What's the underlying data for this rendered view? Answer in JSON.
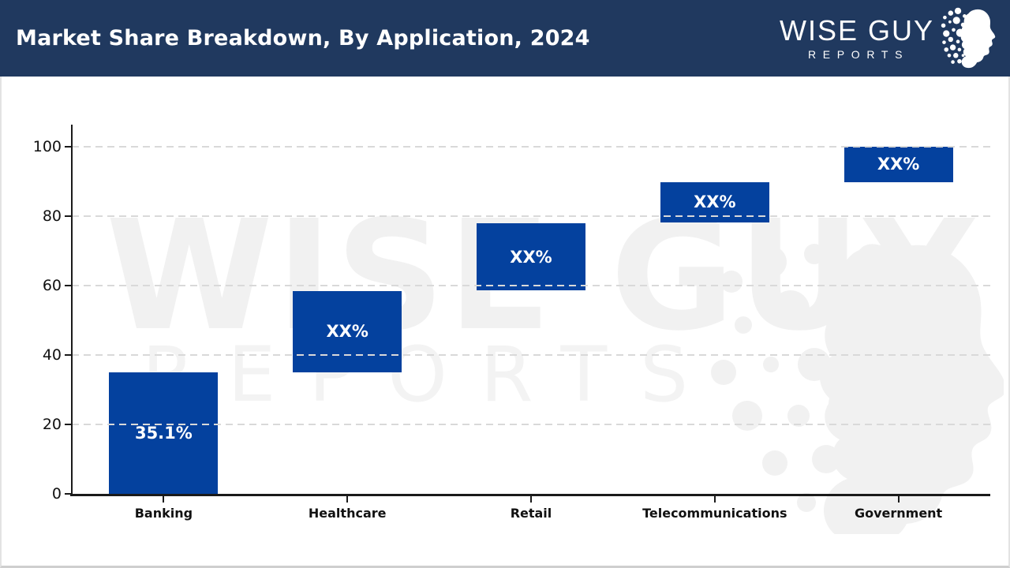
{
  "header": {
    "title": "Market Share Breakdown, By Application, 2024",
    "background_color": "#20395F",
    "logo": {
      "line1": "WISE GUY",
      "line2": "REPORTS"
    }
  },
  "watermark": {
    "line1": "WISE GUY",
    "line2": "REPORTS"
  },
  "chart_data": {
    "type": "bar",
    "subtype": "floating-segment-waterfall",
    "title": "Market Share Breakdown, By Application, 2024",
    "xlabel": "",
    "ylabel": "",
    "categories": [
      "Banking",
      "Healthcare",
      "Retail",
      "Telecommunications",
      "Government"
    ],
    "segments": [
      {
        "category": "Banking",
        "start": 0,
        "end": 35.1,
        "label": "35.1%"
      },
      {
        "category": "Healthcare",
        "start": 35.1,
        "end": 58.4,
        "label": "XX%"
      },
      {
        "category": "Retail",
        "start": 58.6,
        "end": 77.9,
        "label": "XX%"
      },
      {
        "category": "Telecommunications",
        "start": 78.2,
        "end": 89.8,
        "label": "XX%"
      },
      {
        "category": "Government",
        "start": 89.8,
        "end": 100,
        "label": "XX%"
      }
    ],
    "yticks": [
      0,
      20,
      40,
      60,
      80,
      100
    ],
    "ylim": [
      0,
      106
    ],
    "grid": "horizontal-dashed",
    "legend": "none",
    "bar_color": "#04419E",
    "bar_label_color": "#FFFFFF",
    "axis_color": "#1A1A1A"
  }
}
